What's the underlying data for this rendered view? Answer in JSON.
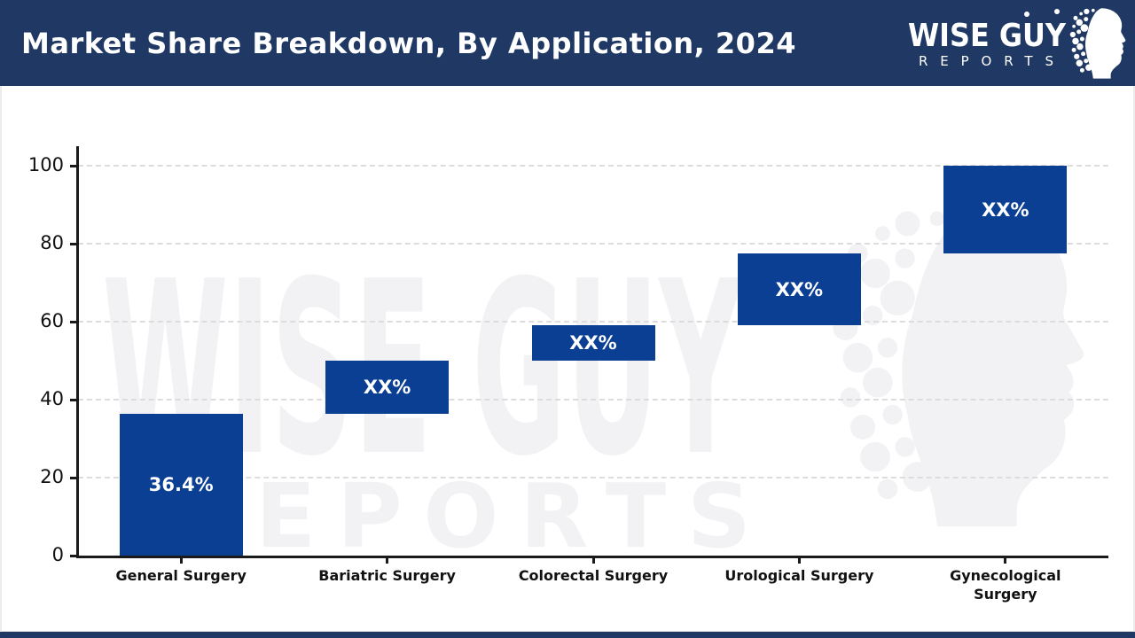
{
  "header": {
    "title": "Market Share Breakdown, By Application, 2024",
    "logo": {
      "line1": "WISE GUY",
      "line2": "REPORTS"
    }
  },
  "watermark": {
    "line1": "WISE GUY",
    "line2": "REPORTS"
  },
  "colors": {
    "header_bg": "#1f3864",
    "footer_bg": "#1f3864",
    "bar": "#0a3f94",
    "bar_label": "#ffffff",
    "axis": "#1a1a1a",
    "grid": "#dcdcdc",
    "tick_label": "#111111",
    "watermark": "#f2f2f5"
  },
  "chart_data": {
    "type": "bar",
    "subtype": "waterfall",
    "title": "Market Share Breakdown, By Application, 2024",
    "categories": [
      "General Surgery",
      "Bariatric Surgery",
      "Colorectal Surgery",
      "Urological Surgery",
      "Gynecological\nSurgery"
    ],
    "segments": [
      {
        "category": "General Surgery",
        "start": 0,
        "end": 36.4,
        "label": "36.4%"
      },
      {
        "category": "Bariatric Surgery",
        "start": 36.4,
        "end": 50,
        "label": "XX%"
      },
      {
        "category": "Colorectal Surgery",
        "start": 50,
        "end": 59,
        "label": "XX%"
      },
      {
        "category": "Urological Surgery",
        "start": 59,
        "end": 77.5,
        "label": "XX%"
      },
      {
        "category": "Gynecological Surgery",
        "start": 77.5,
        "end": 100,
        "label": "XX%"
      }
    ],
    "y_ticks": [
      0,
      20,
      40,
      60,
      80,
      100
    ],
    "ylim": [
      0,
      100
    ],
    "xlabel": "",
    "ylabel": "",
    "legend": "none",
    "grid": "horizontal-dashed"
  }
}
